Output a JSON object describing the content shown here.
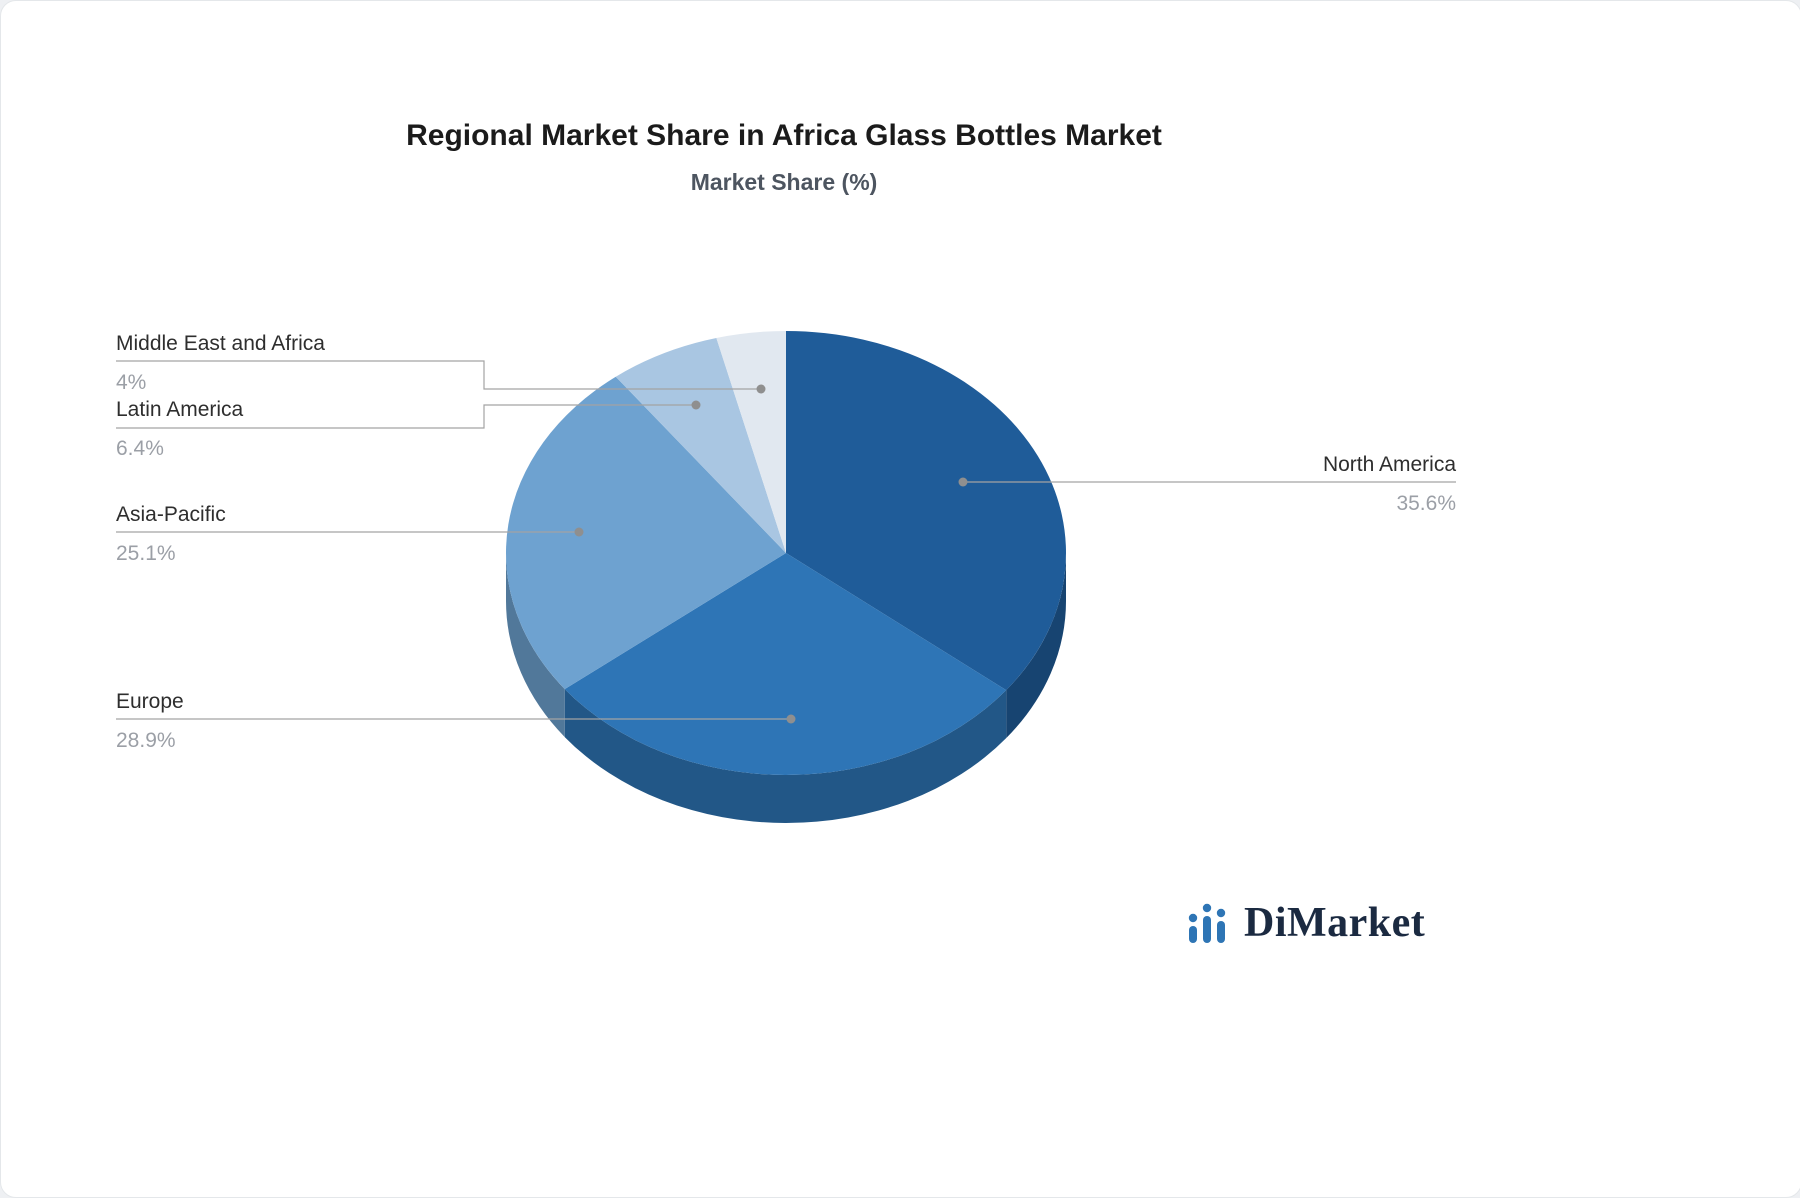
{
  "chart_data": {
    "type": "pie",
    "style": "3d",
    "title": "Regional Market Share in Africa Glass Bottles Market",
    "subtitle": "Market Share (%)",
    "labels": [
      "North America",
      "Europe",
      "Asia-Pacific",
      "Latin America",
      "Middle East and Africa"
    ],
    "values": [
      35.6,
      28.9,
      25.1,
      6.4,
      4
    ],
    "value_labels": [
      "35.6%",
      "28.9%",
      "25.1%",
      "6.4%",
      "4%"
    ],
    "colors": [
      "#1f5c99",
      "#2e75b6",
      "#6ea2d0",
      "#a9c6e2",
      "#e1e8f0"
    ],
    "start_angle": -90,
    "direction": "clockwise",
    "legend_position": "none",
    "label_style": "callout"
  },
  "logo": {
    "brand": "DiMarket",
    "icon": "bar-chart-logo-icon",
    "icon_color": "#2e75b5",
    "text_color": "#1b2a41"
  }
}
